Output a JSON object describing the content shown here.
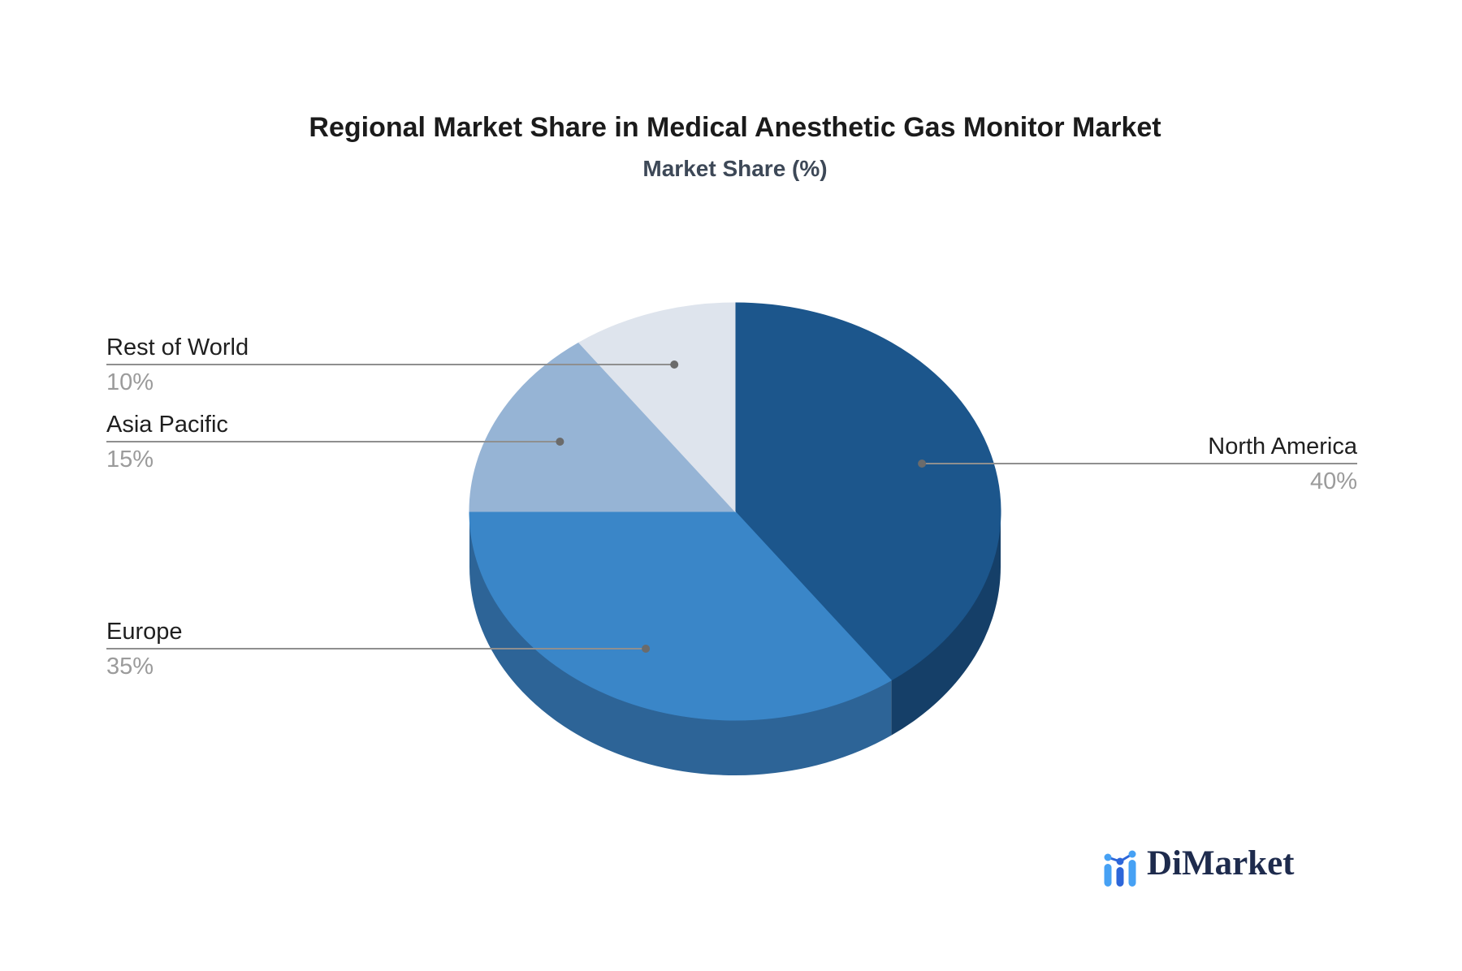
{
  "header": {
    "title": "Regional Market Share in Medical Anesthetic Gas Monitor Market",
    "subtitle": "Market Share (%)"
  },
  "chart_data": {
    "type": "pie",
    "title": "Regional Market Share in Medical Anesthetic Gas Monitor Market",
    "subtitle": "Market Share (%)",
    "unit": "%",
    "effect": "3d",
    "start_angle": "top",
    "direction": "clockwise",
    "slices": [
      {
        "label": "North America",
        "value": 40,
        "display": "40%",
        "color": "#1c568c",
        "wall_color": "#153f68"
      },
      {
        "label": "Europe",
        "value": 35,
        "display": "35%",
        "color": "#3a86c8",
        "wall_color": "#2d6497"
      },
      {
        "label": "Asia Pacific",
        "value": 15,
        "display": "15%",
        "color": "#96b4d5"
      },
      {
        "label": "Rest of World",
        "value": 10,
        "display": "10%",
        "color": "#dee4ed"
      }
    ],
    "legend": "none",
    "leader_line_color": "#8f8f8f",
    "leader_dot_color": "#6b6b6b",
    "label_color": "#1f1f1f",
    "value_color": "#9b9b9b"
  },
  "branding": {
    "logo_text": "DiMarket",
    "logo_icon": "bar-line-chart-icon",
    "logo_text_color": "#1e2b4d",
    "logo_light_blue": "#46a1f4",
    "logo_dark_blue": "#2d66d9"
  }
}
